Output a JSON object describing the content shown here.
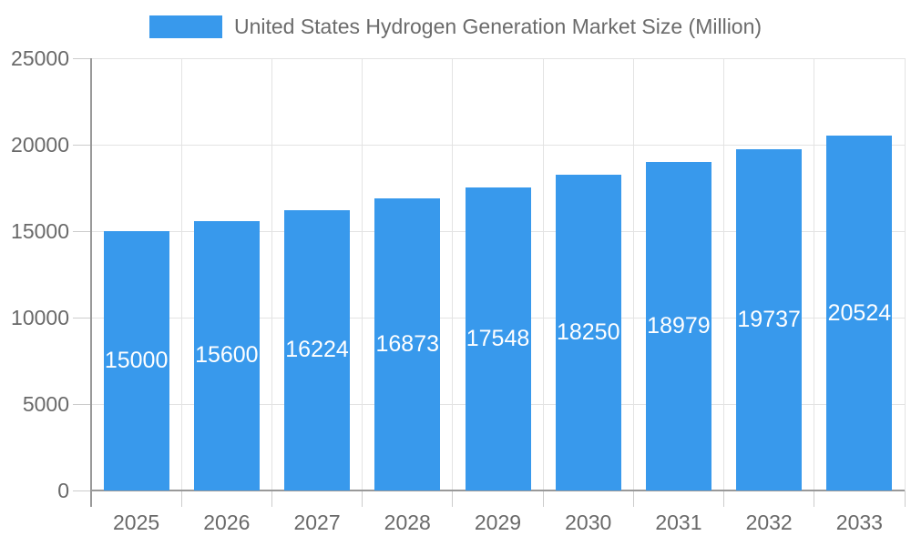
{
  "legend": {
    "label": "United States Hydrogen Generation Market Size (Million)"
  },
  "chart_data": {
    "type": "bar",
    "title": "United States Hydrogen Generation Market Size (Million)",
    "categories": [
      "2025",
      "2026",
      "2027",
      "2028",
      "2029",
      "2030",
      "2031",
      "2032",
      "2033"
    ],
    "values": [
      15000,
      15600,
      16224,
      16873,
      17548,
      18250,
      18979,
      19737,
      20524
    ],
    "value_labels": [
      "15000",
      "15600",
      "16224",
      "16873",
      "17548",
      "18250",
      "18979",
      "19737",
      "20524"
    ],
    "xlabel": "",
    "ylabel": "",
    "ylim": [
      0,
      25000
    ],
    "yticks": [
      0,
      5000,
      10000,
      15000,
      20000,
      25000
    ],
    "ytick_labels": [
      "0",
      "5000",
      "10000",
      "15000",
      "20000",
      "25000"
    ],
    "grid": true,
    "legend_position": "top",
    "value_label_position": "inside-center"
  },
  "colors": {
    "bar": "#3899EC",
    "grid": "#e3e3e3",
    "axis": "#999999",
    "tick": "#cccccc",
    "axis_text": "#696969",
    "value_text": "#ffffff",
    "legend_text": "#6b6b6b"
  }
}
